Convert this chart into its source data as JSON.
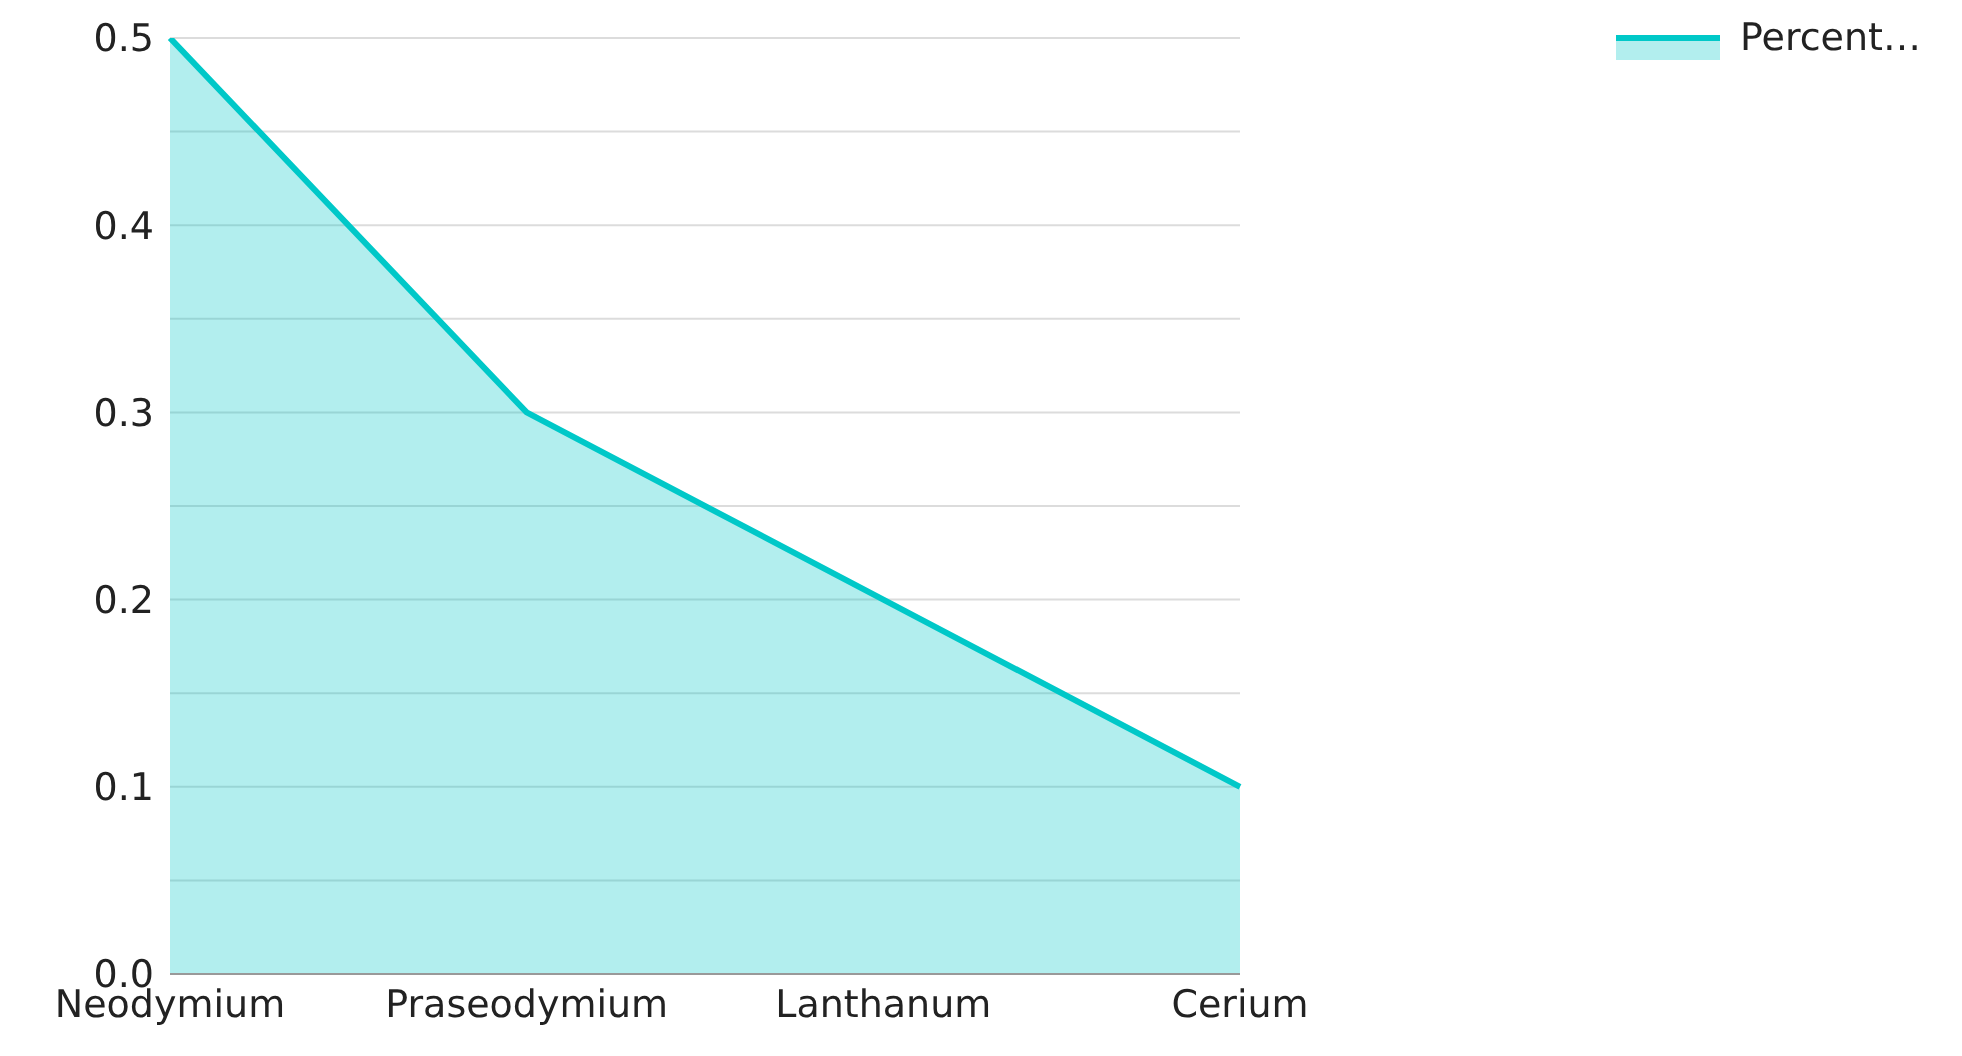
{
  "chart_data": {
    "type": "area",
    "categories": [
      "Neodymium",
      "Praseodymium",
      "Lanthanum",
      "Cerium"
    ],
    "series": [
      {
        "name": "Percent…",
        "color": "#00c8c8",
        "values": [
          0.5,
          0.3,
          0.2,
          0.1
        ]
      }
    ],
    "ylim": [
      0,
      0.5
    ],
    "yticks": [
      {
        "value": 0,
        "label": "0.0"
      },
      {
        "value": 0.05,
        "label": null
      },
      {
        "value": 0.1,
        "label": "0.1"
      },
      {
        "value": 0.15,
        "label": null
      },
      {
        "value": 0.2,
        "label": "0.2"
      },
      {
        "value": 0.25,
        "label": null
      },
      {
        "value": 0.3,
        "label": "0.3"
      },
      {
        "value": 0.35,
        "label": null
      },
      {
        "value": 0.4,
        "label": "0.4"
      },
      {
        "value": 0.45,
        "label": null
      },
      {
        "value": 0.5,
        "label": "0.5"
      }
    ],
    "grid": "y",
    "legend": "top right",
    "marker": "none"
  }
}
